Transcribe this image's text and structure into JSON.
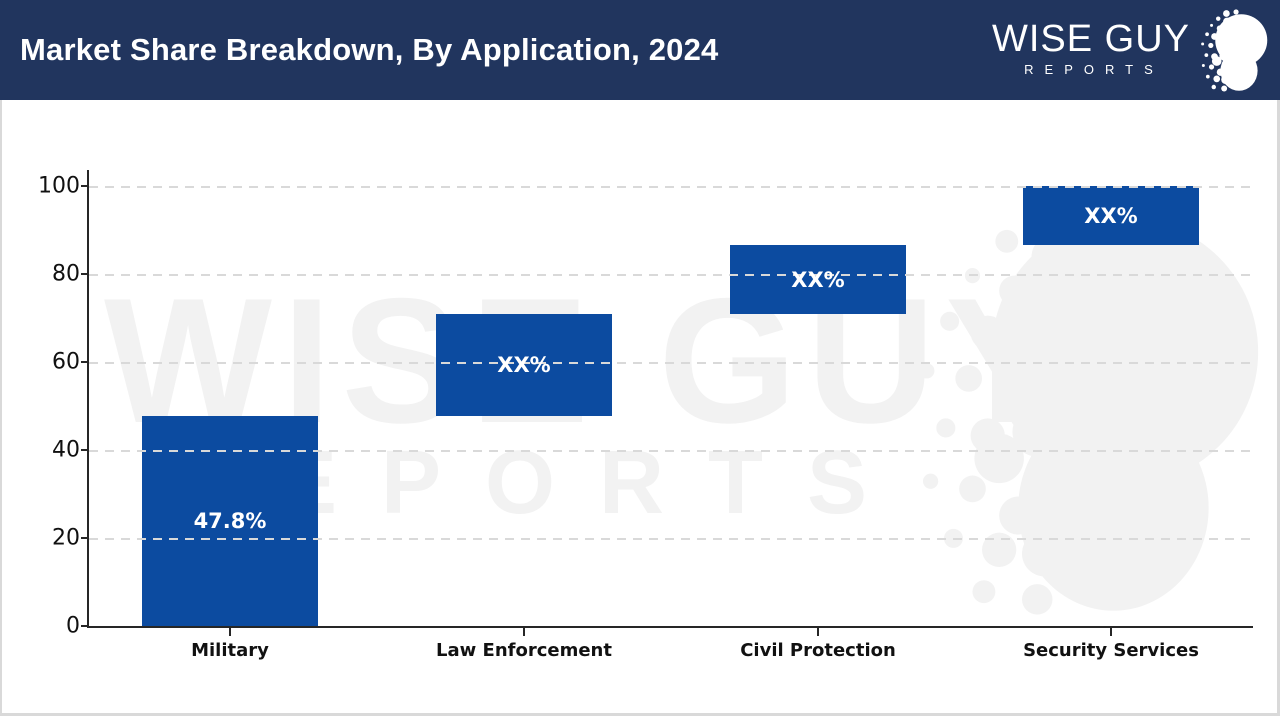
{
  "header": {
    "title": "Market Share Breakdown, By Application, 2024",
    "logo": {
      "line1": "WISE GUY",
      "line2": "REPORTS"
    }
  },
  "watermark": {
    "line1": "WISE GUY",
    "line2": "REPORTS"
  },
  "chart_data": {
    "type": "bar",
    "subtype": "waterfall",
    "title": "Market Share Breakdown, By Application, 2024",
    "categories": [
      "Military",
      "Law Enforcement",
      "Civil Protection",
      "Security Services"
    ],
    "segments": [
      {
        "category": "Military",
        "start": 0,
        "end": 47.8,
        "label": "47.8%"
      },
      {
        "category": "Law Enforcement",
        "start": 47.8,
        "end": 71.0,
        "label": "XX%"
      },
      {
        "category": "Civil Protection",
        "start": 71.0,
        "end": 86.5,
        "label": "XX%"
      },
      {
        "category": "Security Services",
        "start": 86.5,
        "end": 100,
        "label": "XX%"
      }
    ],
    "yticks": [
      0,
      20,
      40,
      60,
      80,
      100
    ],
    "ylim": [
      0,
      100
    ],
    "xlabel": "",
    "ylabel": "",
    "grid": "dashed horizontal",
    "legend": "none"
  },
  "colors": {
    "header_bg": "#21355E",
    "bar": "#0C4BA0",
    "grid": "#D9D9D9",
    "axis": "#262626",
    "bar_label_text": "#FFFFFF",
    "watermark": "#F2F2F2",
    "frame_border": "#D9D9D9"
  }
}
